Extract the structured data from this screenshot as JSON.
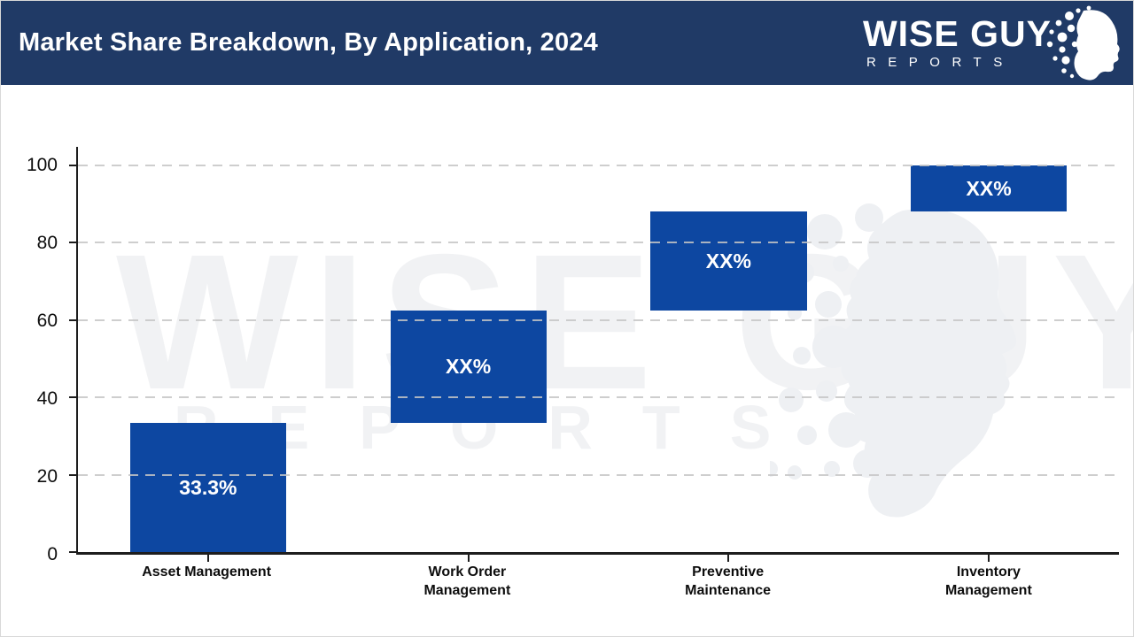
{
  "header": {
    "title": "Market Share Breakdown, By Application, 2024",
    "bg_color": "#203a66",
    "logo": {
      "line1": "WISE GUY",
      "line2": "REPORTS"
    }
  },
  "watermark": {
    "line1": "WISE GUY",
    "line2": "REPORTS"
  },
  "chart_data": {
    "type": "bar",
    "subtype": "floating-waterfall",
    "title": "Market Share Breakdown, By Application, 2024",
    "categories": [
      "Asset Management",
      "Work Order\nManagement",
      "Preventive\nMaintenance",
      "Inventory\nManagement"
    ],
    "segments": [
      {
        "label": "Asset Management",
        "start": 0,
        "end": 33.3,
        "value_label": "33.3%"
      },
      {
        "label": "Work Order Management",
        "start": 33.3,
        "end": 62.5,
        "value_label": "XX%"
      },
      {
        "label": "Preventive Maintenance",
        "start": 62.5,
        "end": 88,
        "value_label": "XX%"
      },
      {
        "label": "Inventory Management",
        "start": 88,
        "end": 100,
        "value_label": "XX%"
      }
    ],
    "y_ticks": [
      0,
      20,
      40,
      60,
      80,
      100
    ],
    "ylim": [
      0,
      104.8
    ],
    "xlabel": "",
    "ylabel": "",
    "bar_color": "#0d47a1",
    "grid": "dashed-horizontal",
    "legend": "none"
  }
}
